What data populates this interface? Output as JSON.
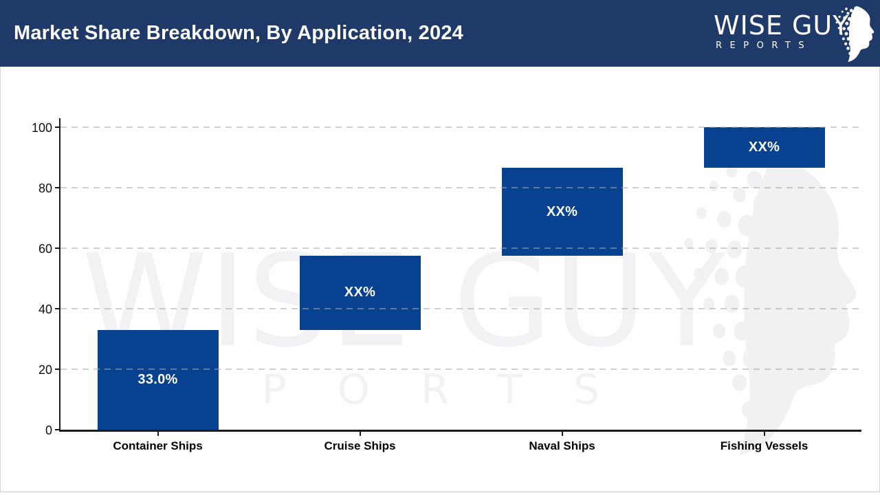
{
  "header": {
    "title": "Market Share Breakdown, By Application, 2024",
    "logo": {
      "line1": "WISE GUY",
      "line2": "REPORTS"
    }
  },
  "watermark": {
    "line1": "WISE GUY",
    "line2": "REPORTS"
  },
  "chart_data": {
    "type": "bar",
    "subtype": "waterfall",
    "title": "Market Share Breakdown, By Application, 2024",
    "categories": [
      "Container Ships",
      "Cruise Ships",
      "Naval Ships",
      "Fishing Vessels"
    ],
    "segments": [
      {
        "category": "Container Ships",
        "start": 0,
        "end": 33,
        "label": "33.0%"
      },
      {
        "category": "Cruise Ships",
        "start": 33,
        "end": 57.5,
        "label": "XX%"
      },
      {
        "category": "Naval Ships",
        "start": 57.5,
        "end": 86.5,
        "label": "XX%"
      },
      {
        "category": "Fishing Vessels",
        "start": 86.5,
        "end": 100,
        "label": "XX%"
      }
    ],
    "ylim": [
      0,
      100
    ],
    "yticks": [
      0,
      20,
      40,
      60,
      80,
      100
    ],
    "grid": "horizontal-dashed",
    "legend": "none",
    "bar_color": "#07418f",
    "bar_label_color": "#ffffff"
  },
  "colors": {
    "header_bg": "#1f3a68",
    "bar": "#07418f",
    "axis": "#1a1a1a",
    "gridline": "#d5d5d5",
    "watermark": "#f2f2f4"
  }
}
